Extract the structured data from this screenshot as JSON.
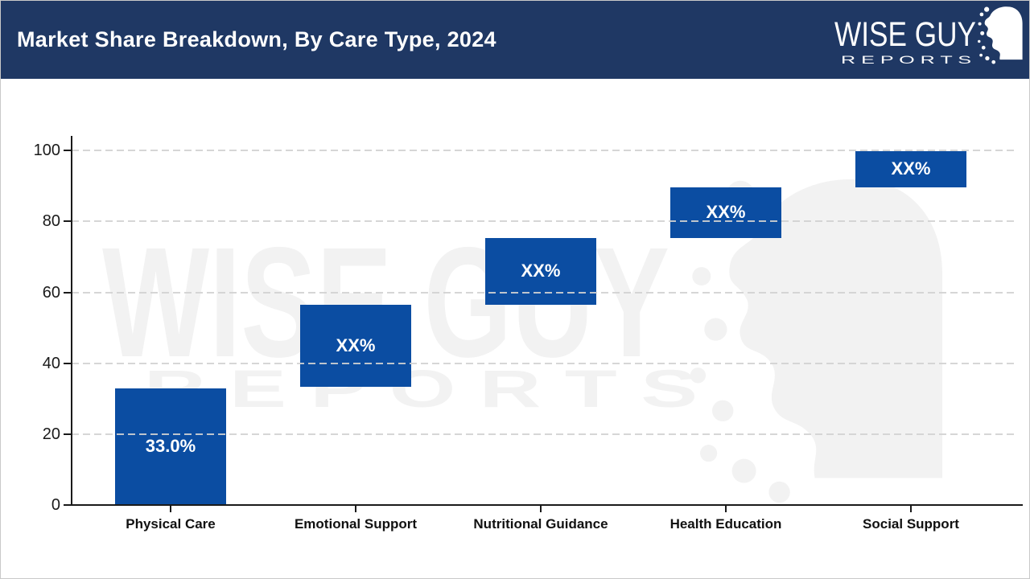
{
  "header": {
    "title": "Market Share Breakdown, By Care Type, 2024",
    "logo": {
      "wordmark": "WISE GUY",
      "subtext": "R E P O R T S"
    }
  },
  "watermark": {
    "wordmark": "WISE GUY",
    "subtext": "R E P O R T S"
  },
  "colors": {
    "header_bg": "#1f3864",
    "bar_fill": "#0b4da2",
    "bar_label_text": "#ffffff",
    "axis": "#1a1a1a",
    "gridline": "#d2d2d2",
    "watermark": "#f2f2f2",
    "canvas_border": "#c9c9c9",
    "tick_text": "#111111"
  },
  "chart_data": {
    "type": "bar",
    "subtype": "waterfall",
    "title": "Market Share Breakdown, By Care Type, 2024",
    "xlabel": "",
    "ylabel": "",
    "ylim": [
      0,
      104
    ],
    "yticks": [
      0,
      20,
      40,
      60,
      80,
      100
    ],
    "grid": "horizontal-dashed-over-bars",
    "legend": "none",
    "categories": [
      "Physical Care",
      "Emotional Support",
      "Nutritional Guidance",
      "Health Education",
      "Social Support"
    ],
    "segments": [
      {
        "category": "Physical Care",
        "start": 0,
        "end": 33.0,
        "label": "33.0%"
      },
      {
        "category": "Emotional Support",
        "start": 33.3,
        "end": 56.5,
        "label": "XX%"
      },
      {
        "category": "Nutritional Guidance",
        "start": 56.6,
        "end": 75.4,
        "label": "XX%"
      },
      {
        "category": "Health Education",
        "start": 75.4,
        "end": 89.6,
        "label": "XX%"
      },
      {
        "category": "Social Support",
        "start": 89.7,
        "end": 99.8,
        "label": "XX%"
      }
    ]
  }
}
